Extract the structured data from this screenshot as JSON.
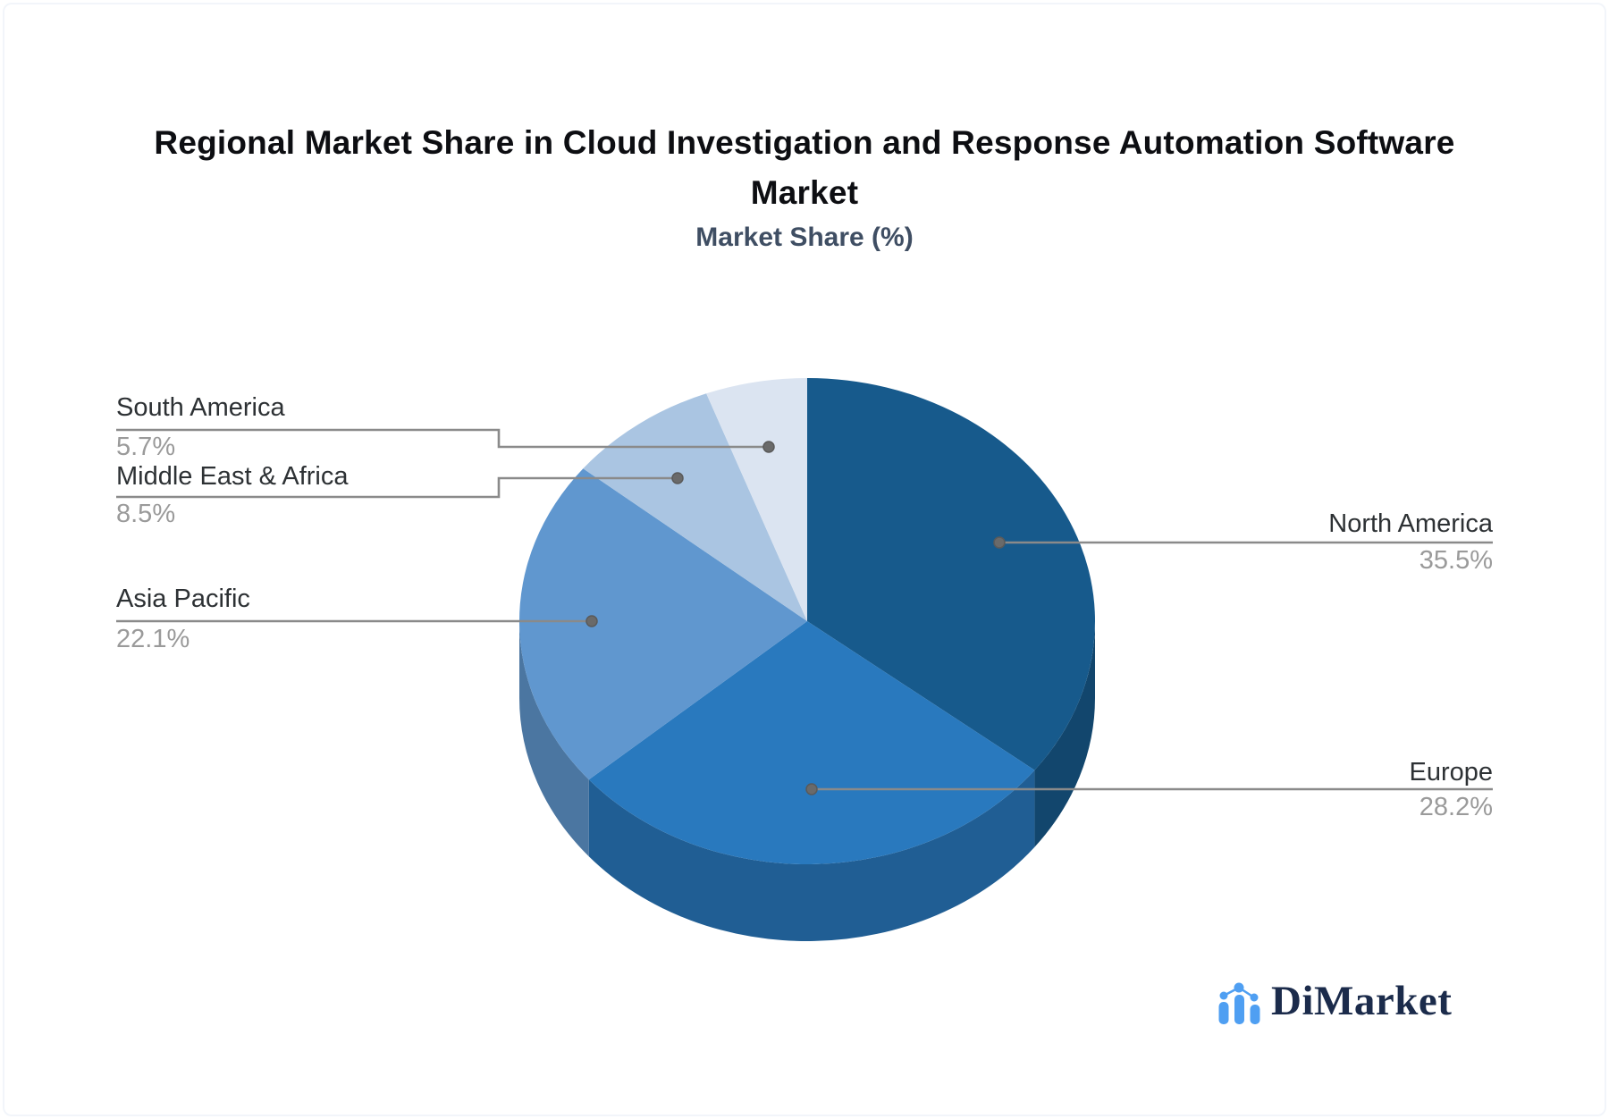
{
  "header": {
    "title": "Regional Market Share in Cloud Investigation and Response Automation Software\nMarket",
    "subtitle": "Market Share (%)"
  },
  "chart_data": {
    "type": "pie",
    "style": "3d-pie",
    "title": "Regional Market Share in Cloud Investigation and Response Automation Software Market",
    "subtitle": "Market Share (%)",
    "unit": "%",
    "start_angle": "12-o-clock, clockwise",
    "legend_position": "callout-labels",
    "series": [
      {
        "name": "North America",
        "value": 35.5,
        "value_label": "35.5%",
        "color": "#175a8c",
        "label_side": "right"
      },
      {
        "name": "Europe",
        "value": 28.2,
        "value_label": "28.2%",
        "color": "#2979be",
        "label_side": "right"
      },
      {
        "name": "Asia Pacific",
        "value": 22.1,
        "value_label": "22.1%",
        "color": "#6097cf",
        "label_side": "left"
      },
      {
        "name": "Middle East & Africa",
        "value": 8.5,
        "value_label": "8.5%",
        "color": "#aac5e2",
        "label_side": "left"
      },
      {
        "name": "South America",
        "value": 5.7,
        "value_label": "5.7%",
        "color": "#dbe4f1",
        "label_side": "left"
      }
    ],
    "colors": {
      "callout_line": "#8a8a8a",
      "callout_dot": "#6a6a6a",
      "label_text": "#2d3134",
      "value_text": "#9a9a9a"
    }
  },
  "logo": {
    "text": "DiMarket",
    "text_color": "#1b2b4b",
    "icon": "bar-chart-with-trend-dots",
    "icon_color": "#4f9ff2"
  }
}
